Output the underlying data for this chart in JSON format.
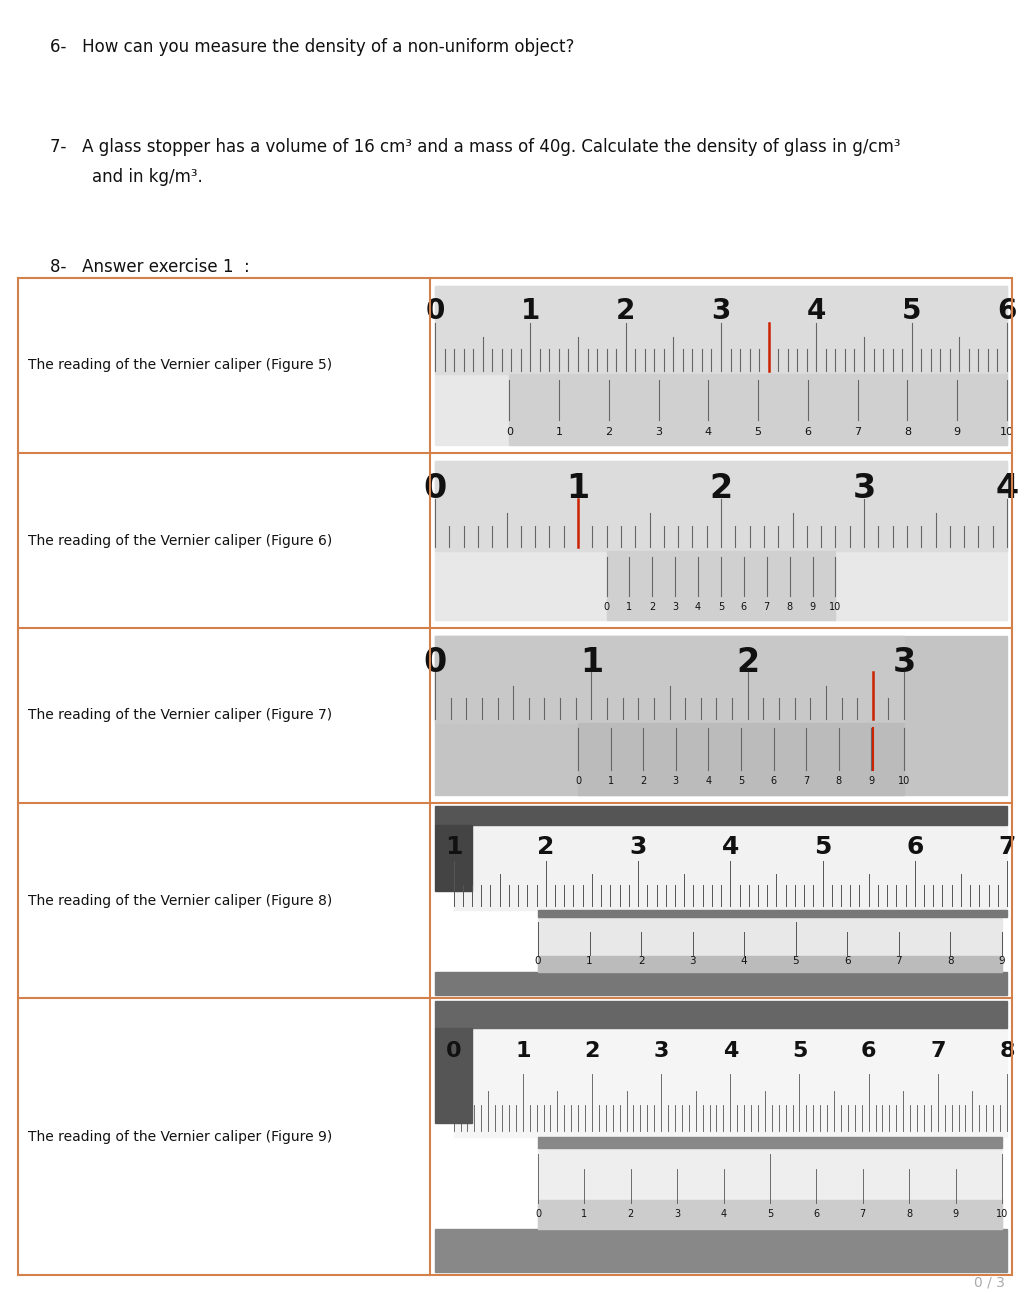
{
  "bg_color": "#ffffff",
  "text_color": "#000000",
  "q6_text": "6-   How can you measure the density of a non-uniform object?",
  "q7_line1": "7-   A glass stopper has a volume of 16 cm³ and a mass of 40g. Calculate the density of glass in g/cm³",
  "q7_line2": "        and in kg/m³.",
  "q8_text": "8-   Answer exercise 1  :",
  "table_border_color": "#d4804a",
  "rows": [
    {
      "label": "The reading of the Vernier caliper (Figure 5)"
    },
    {
      "label": "The reading of the Vernier caliper (Figure 6)"
    },
    {
      "label": "The reading of the Vernier caliper (Figure 7)"
    },
    {
      "label": "The reading of the Vernier caliper (Figure 8)"
    },
    {
      "label": "The reading of the Vernier caliper (Figure 9)"
    }
  ],
  "red_line_color": "#cc2200",
  "page_note": "0 / 3"
}
